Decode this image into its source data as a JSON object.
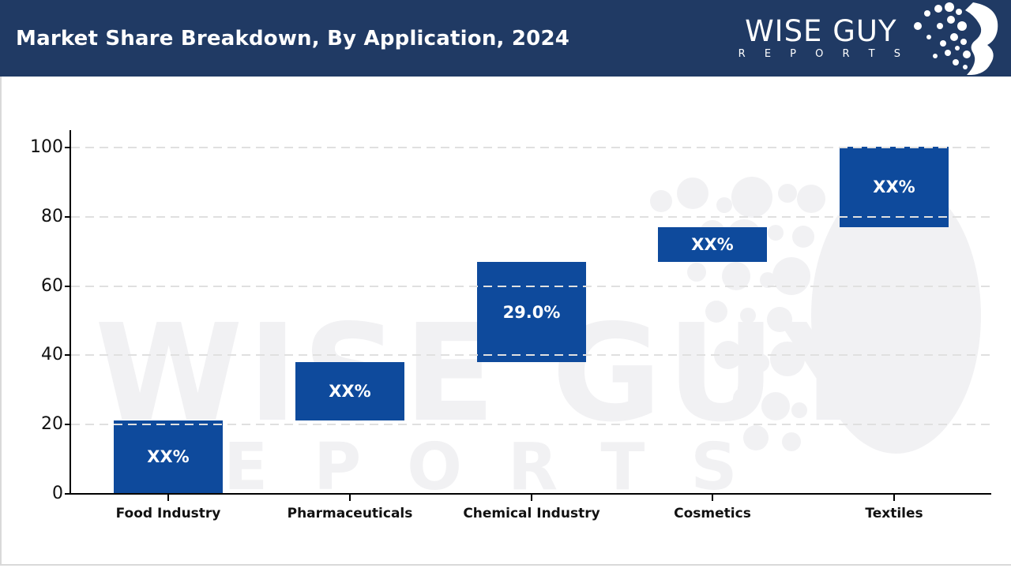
{
  "header": {
    "title": "Market Share Breakdown, By Application, 2024",
    "logo": {
      "line1": "WISE GUY",
      "line2": "R E P O R T S"
    }
  },
  "watermark": {
    "line1": "WISE GUY",
    "line2": "REPORTS"
  },
  "chart_data": {
    "type": "bar",
    "subtype": "waterfall",
    "title": "Market Share Breakdown, By Application, 2024",
    "categories": [
      "Food Industry",
      "Pharmaceuticals",
      "Chemical Industry",
      "Cosmetics",
      "Textiles"
    ],
    "bars": [
      {
        "category": "Food Industry",
        "start": 0.0,
        "end": 21.0,
        "value_label": "XX%"
      },
      {
        "category": "Pharmaceuticals",
        "start": 21.0,
        "end": 37.7,
        "value_label": "XX%"
      },
      {
        "category": "Chemical Industry",
        "start": 37.7,
        "end": 66.7,
        "value_label": "29.0%"
      },
      {
        "category": "Cosmetics",
        "start": 66.7,
        "end": 76.7,
        "value_label": "XX%"
      },
      {
        "category": "Textiles",
        "start": 76.7,
        "end": 100.0,
        "value_label": "XX%"
      }
    ],
    "ylim": [
      0,
      100
    ],
    "yticks": [
      0,
      20,
      40,
      60,
      80,
      100
    ],
    "xlabel": "",
    "ylabel": "",
    "grid": "horizontal-dashed",
    "legend": "none"
  },
  "colors": {
    "header_bg": "#203a64",
    "bar_fill": "#0e4a9c",
    "bar_label": "#ffffff",
    "grid_line": "#e0e0e0",
    "axis_line": "#000000",
    "tick_label": "#111111",
    "watermark": "#f1f1f3",
    "page_bg": "#ffffff"
  }
}
